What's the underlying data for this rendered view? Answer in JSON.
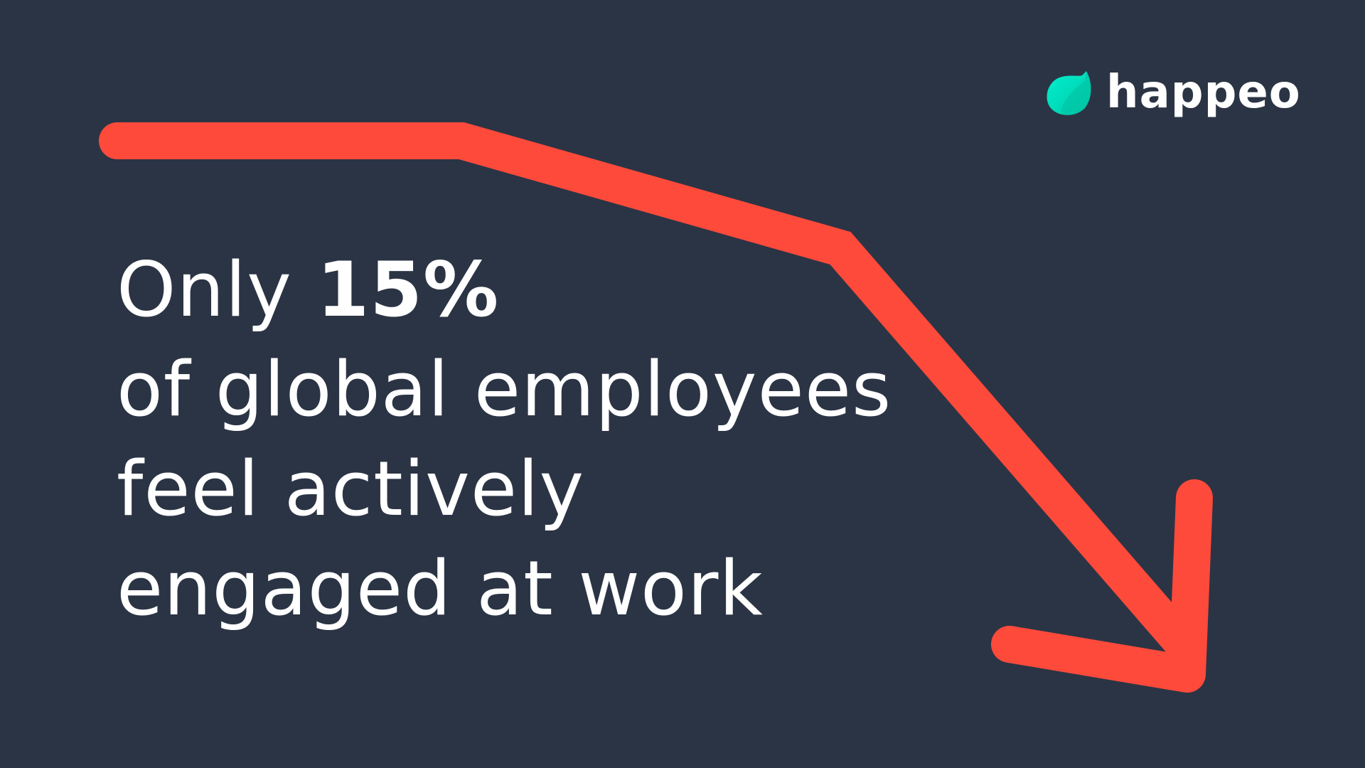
{
  "brand": {
    "name": "happeo",
    "accent": "#00e5c3"
  },
  "headline": {
    "line1_prefix": "Only ",
    "line1_highlight": "15%",
    "line2": "of global employees",
    "line3": "feel actively",
    "line4": "engaged at work"
  },
  "colors": {
    "background": "#2b3444",
    "arrow": "#fe4a3b",
    "text": "#ffffff"
  },
  "icons": {
    "arrow": "trend-down-arrow-icon",
    "logo": "happeo-leaf-icon"
  }
}
